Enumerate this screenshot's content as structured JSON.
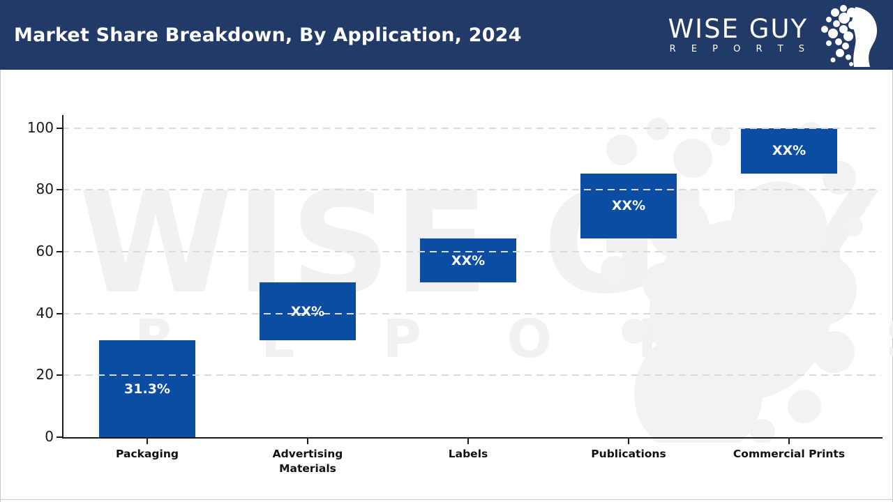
{
  "header": {
    "title": "Market Share Breakdown, By Application, 2024",
    "logo": {
      "line1": "WISE GUY",
      "line2": "R E P O R T S"
    }
  },
  "watermark": {
    "line1": "WISE GUY",
    "line2": "R E P O R T S"
  },
  "colors": {
    "header_bg": "#213a67",
    "bar": "#0b4da2",
    "bar_label": "#ffffff",
    "gridline": "#dadada",
    "axis": "#1a1a1a",
    "watermark": "#f1f1f4",
    "page_border": "#c9c9c9"
  },
  "chart_data": {
    "type": "bar",
    "subtype": "floating-waterfall",
    "title": "Market Share Breakdown, By Application, 2024",
    "categories": [
      "Packaging",
      "Advertising Materials",
      "Labels",
      "Publications",
      "Commercial Prints"
    ],
    "category_display": [
      "Packaging",
      "Advertising\nMaterials",
      "Labels",
      "Publications",
      "Commercial Prints"
    ],
    "segments": [
      {
        "category": "Packaging",
        "start": 0,
        "end": 31.3,
        "label": "31.3%"
      },
      {
        "category": "Advertising Materials",
        "start": 31.3,
        "end": 50.0,
        "label": "XX%"
      },
      {
        "category": "Labels",
        "start": 50.0,
        "end": 64.3,
        "label": "XX%"
      },
      {
        "category": "Publications",
        "start": 64.3,
        "end": 85.3,
        "label": "XX%"
      },
      {
        "category": "Commercial Prints",
        "start": 85.3,
        "end": 100.0,
        "label": "XX%"
      }
    ],
    "xlabel": "",
    "ylabel": "",
    "ylim": [
      0,
      100
    ],
    "yticks": [
      0,
      20,
      40,
      60,
      80,
      100
    ],
    "grid": "horizontal-dashed",
    "legend": "none"
  }
}
